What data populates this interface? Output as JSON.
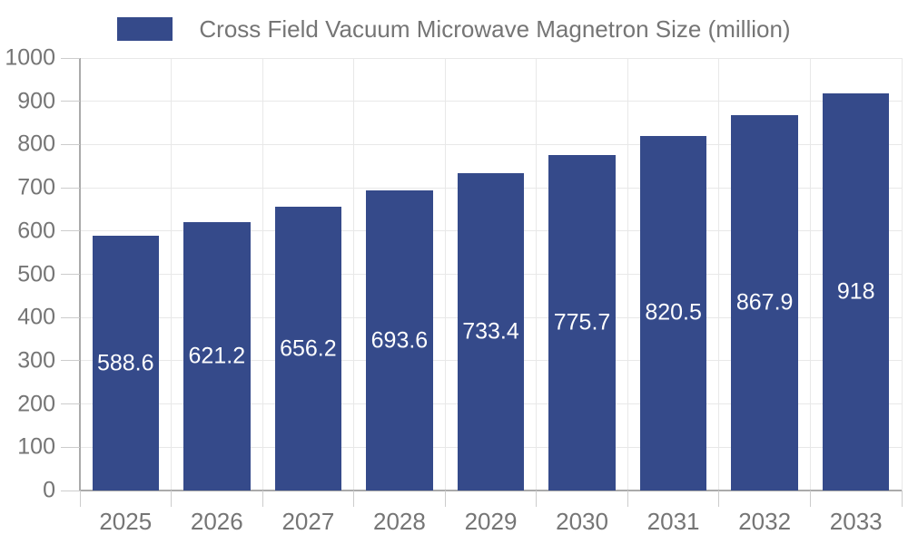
{
  "chart_data": {
    "type": "bar",
    "title": "Cross Field Vacuum Microwave Magnetron Size (million)",
    "legend_entries": [
      "Cross Field Vacuum Microwave Magnetron Size (million)"
    ],
    "legend_position": "top",
    "categories": [
      "2025",
      "2026",
      "2027",
      "2028",
      "2029",
      "2030",
      "2031",
      "2032",
      "2033"
    ],
    "series": [
      {
        "name": "Cross Field Vacuum Microwave Magnetron Size (million)",
        "values": [
          588.6,
          621.2,
          656.2,
          693.6,
          733.4,
          775.7,
          820.5,
          867.9,
          918
        ]
      }
    ],
    "data_labels": [
      "588.6",
      "621.2",
      "656.2",
      "693.6",
      "733.4",
      "775.7",
      "820.5",
      "867.9",
      "918"
    ],
    "xlabel": "",
    "ylabel": "",
    "ylim": [
      0,
      1000
    ],
    "yticks": [
      0,
      100,
      200,
      300,
      400,
      500,
      600,
      700,
      800,
      900,
      1000
    ],
    "grid": true,
    "colors": {
      "bar": "#354A8A",
      "value_label": "#ffffff",
      "axis_label": "#757575",
      "legend_label": "#757575",
      "grid_line": "#e8e8e8",
      "axis_line": "#aaaaaa",
      "tick": "#cccccc",
      "background": "#ffffff"
    }
  }
}
